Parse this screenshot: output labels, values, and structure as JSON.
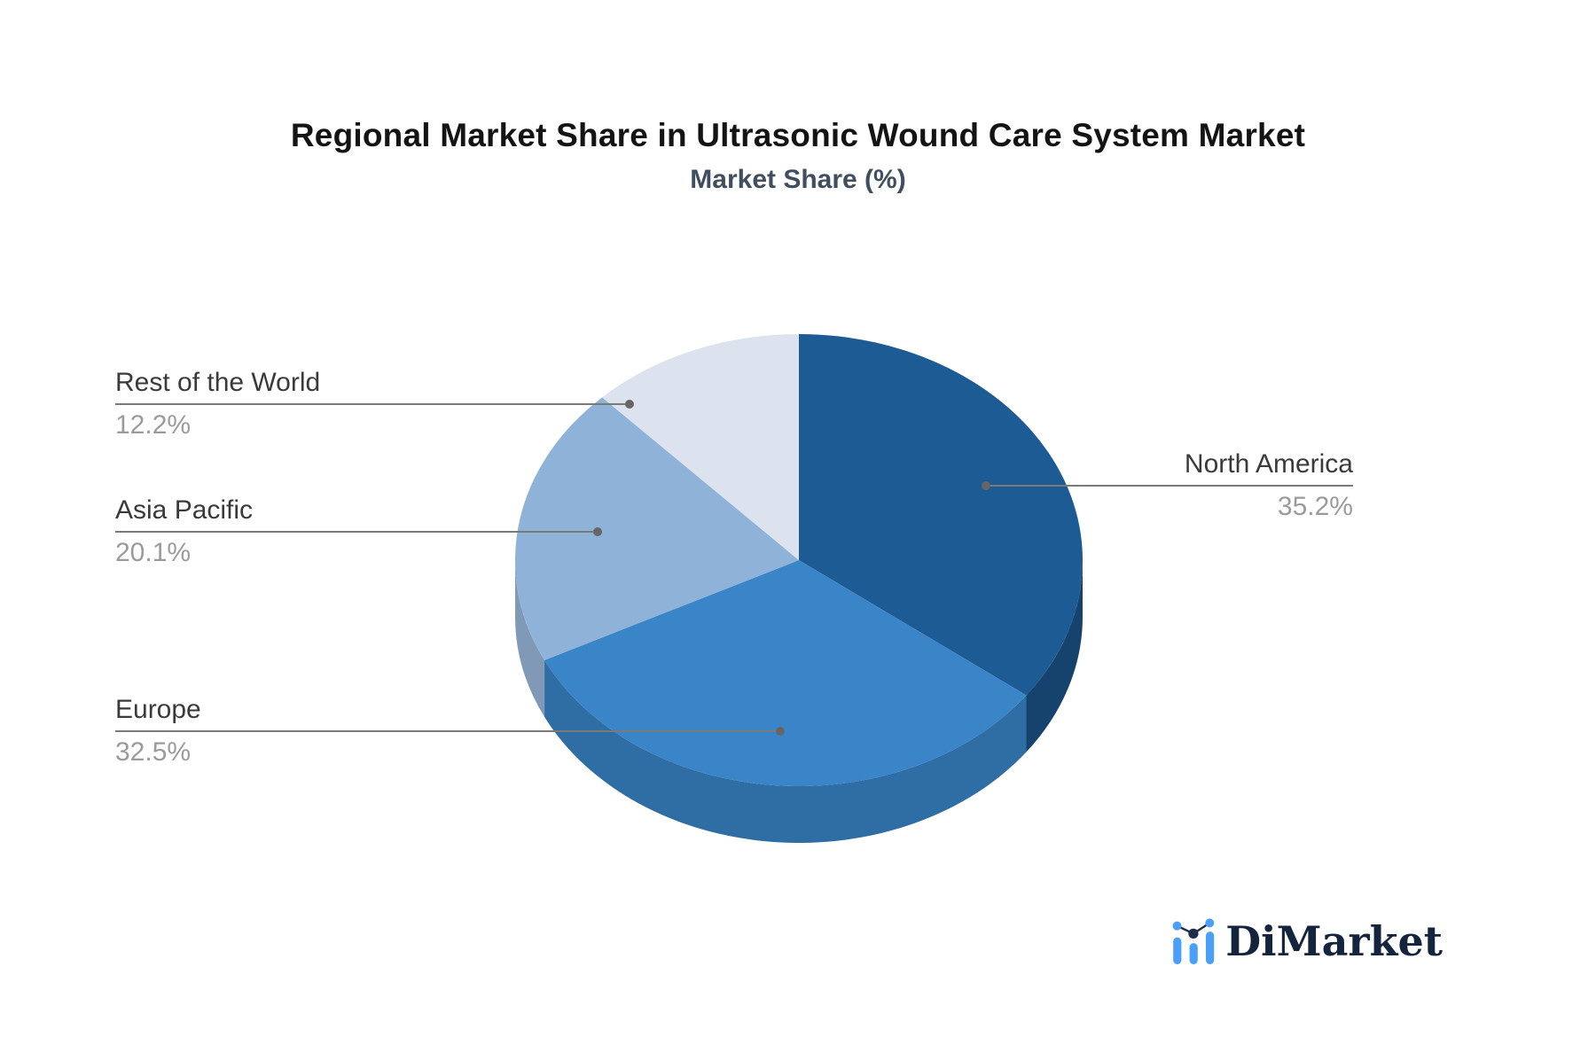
{
  "title": "Regional Market Share in Ultrasonic Wound Care System Market",
  "subtitle": "Market Share (%)",
  "brand": {
    "name": "DiMarket"
  },
  "chart_data": {
    "type": "pie",
    "title": "Regional Market Share in Ultrasonic Wound Care System Market",
    "subtitle": "Market Share (%)",
    "unit": "%",
    "effect": "3d",
    "start_angle": "top",
    "direction": "clockwise",
    "legend": false,
    "slices": [
      {
        "label": "North America",
        "value": 35.2,
        "pct_label": "35.2%",
        "color": "#1d5b94",
        "depth_color": "#15436e"
      },
      {
        "label": "Europe",
        "value": 32.5,
        "pct_label": "32.5%",
        "color": "#3a85c7",
        "depth_color": "#2f6da5"
      },
      {
        "label": "Asia Pacific",
        "value": 20.1,
        "pct_label": "20.1%",
        "color": "#8fb2d8",
        "depth_color": "#7f99b6"
      },
      {
        "label": "Rest of the World",
        "value": 12.2,
        "pct_label": "12.2%",
        "color": "#dce3ee",
        "depth_color": "#c3ccdb"
      }
    ]
  }
}
